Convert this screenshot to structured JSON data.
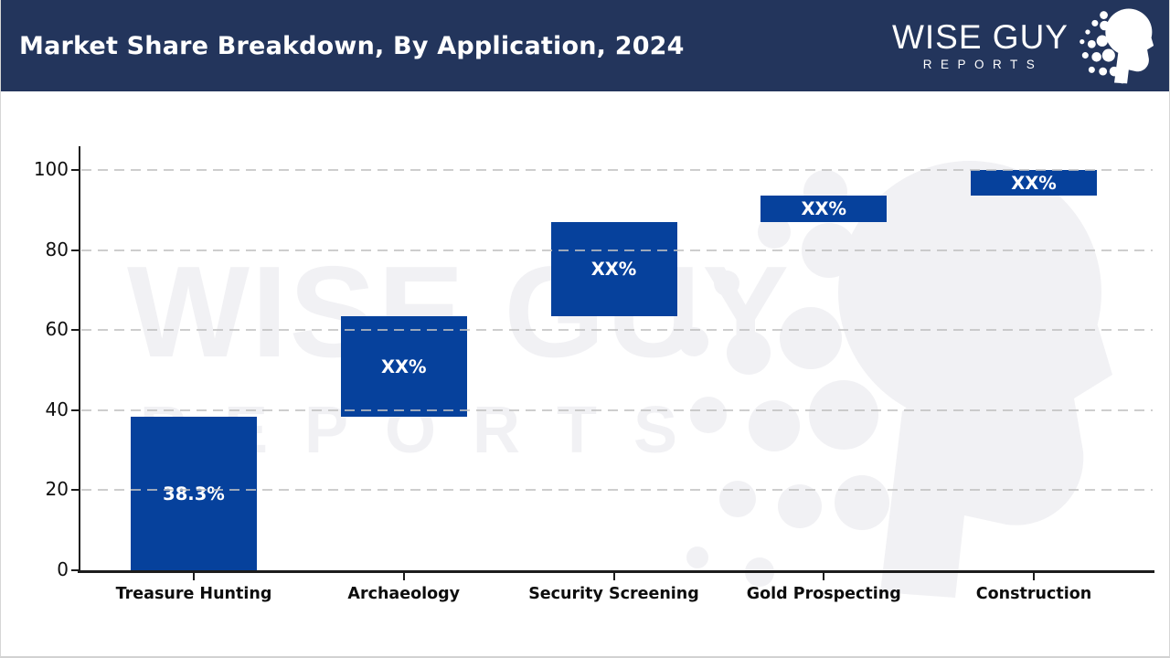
{
  "header": {
    "title": "Market Share Breakdown, By Application, 2024",
    "logo": {
      "line1": "WISE GUY",
      "line2": "REPORTS"
    }
  },
  "watermark": {
    "line1": "WISE GUY",
    "line2": "REPORTS"
  },
  "chart_data": {
    "type": "bar",
    "subtype": "waterfall",
    "title": "Market Share Breakdown, By Application, 2024",
    "categories": [
      "Treasure Hunting",
      "Archaeology",
      "Security Screening",
      "Gold Prospecting",
      "Construction"
    ],
    "segments": [
      {
        "category": "Treasure Hunting",
        "start": 0,
        "end": 38.3,
        "label": "38.3%"
      },
      {
        "category": "Archaeology",
        "start": 38.3,
        "end": 63.5,
        "label": "XX%"
      },
      {
        "category": "Security Screening",
        "start": 63.5,
        "end": 87.1,
        "label": "XX%"
      },
      {
        "category": "Gold Prospecting",
        "start": 87.1,
        "end": 93.5,
        "label": "XX%"
      },
      {
        "category": "Construction",
        "start": 93.5,
        "end": 100,
        "label": "XX%"
      }
    ],
    "yticks": [
      0,
      20,
      40,
      60,
      80,
      100
    ],
    "ylim": [
      0,
      105
    ],
    "xlabel": "",
    "ylabel": "",
    "grid": "dashed-horizontal",
    "legend": "none",
    "bar_color": "#06419c",
    "bar_label_color": "#ffffff"
  },
  "colors": {
    "header_bg": "#23355c",
    "bar": "#06419c",
    "axis": "#1c1c1c",
    "grid": "#cfcfcf",
    "watermark": "#f1f1f4"
  }
}
